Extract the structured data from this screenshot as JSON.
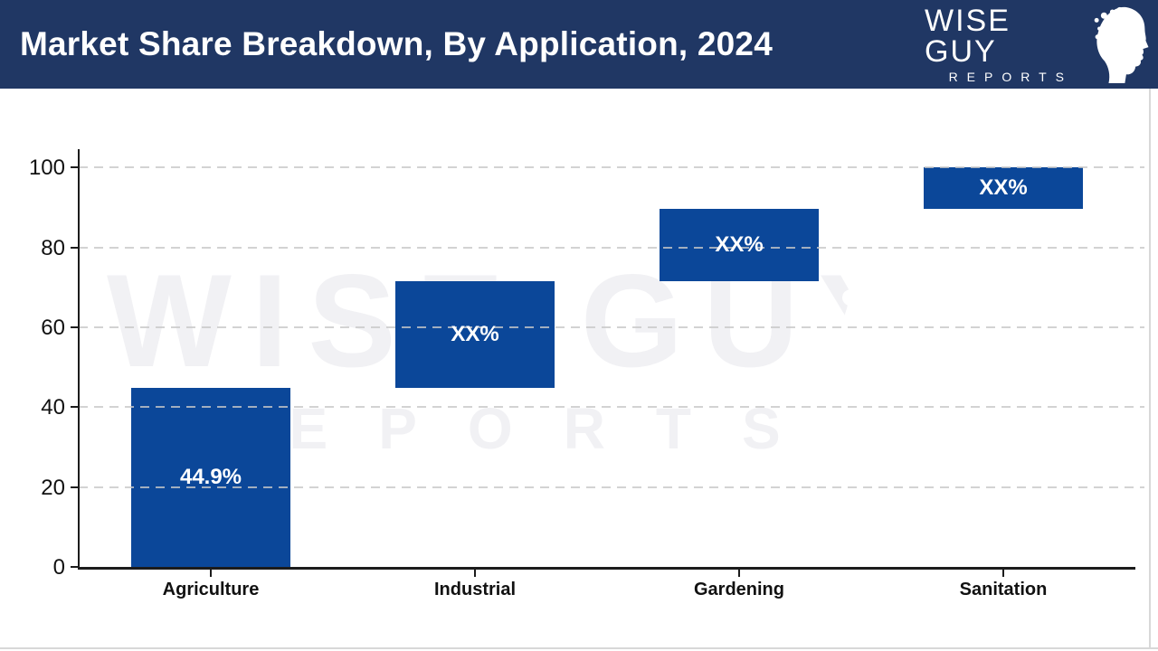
{
  "header": {
    "title": "Market Share Breakdown, By Application, 2024",
    "logo": {
      "line1": "WISE GUY",
      "line2": "REPORTS"
    }
  },
  "watermark": {
    "line1": "WISE GUY",
    "line2": "REPORTS"
  },
  "colors": {
    "header_bg": "#203764",
    "bar": "#0b4799",
    "gridline": "#c8c8c8",
    "axis": "#1c1c1c",
    "bar_label": "#ffffff",
    "watermark": "#f1f1f4"
  },
  "chart_data": {
    "type": "bar",
    "subtype": "waterfall",
    "title": "Market Share Breakdown, By Application, 2024",
    "categories": [
      "Agriculture",
      "Industrial",
      "Gardening",
      "Sanitation"
    ],
    "segments": [
      {
        "category": "Agriculture",
        "start": 0,
        "end": 44.9,
        "value": 44.9,
        "label": "44.9%"
      },
      {
        "category": "Industrial",
        "start": 44.9,
        "end": 71.6,
        "value": 26.7,
        "label": "XX%"
      },
      {
        "category": "Gardening",
        "start": 71.6,
        "end": 89.7,
        "value": 18.1,
        "label": "XX%"
      },
      {
        "category": "Sanitation",
        "start": 89.7,
        "end": 100,
        "value": 10.3,
        "label": "XX%"
      }
    ],
    "xlabel": "",
    "ylabel": "",
    "ylim": [
      0,
      105
    ],
    "yticks": [
      0,
      20,
      40,
      60,
      80,
      100
    ],
    "grid": "horizontal-dashed, drawn over bars",
    "legend": "none",
    "bar_color": "#0b4799",
    "value_label_color": "#ffffff"
  }
}
